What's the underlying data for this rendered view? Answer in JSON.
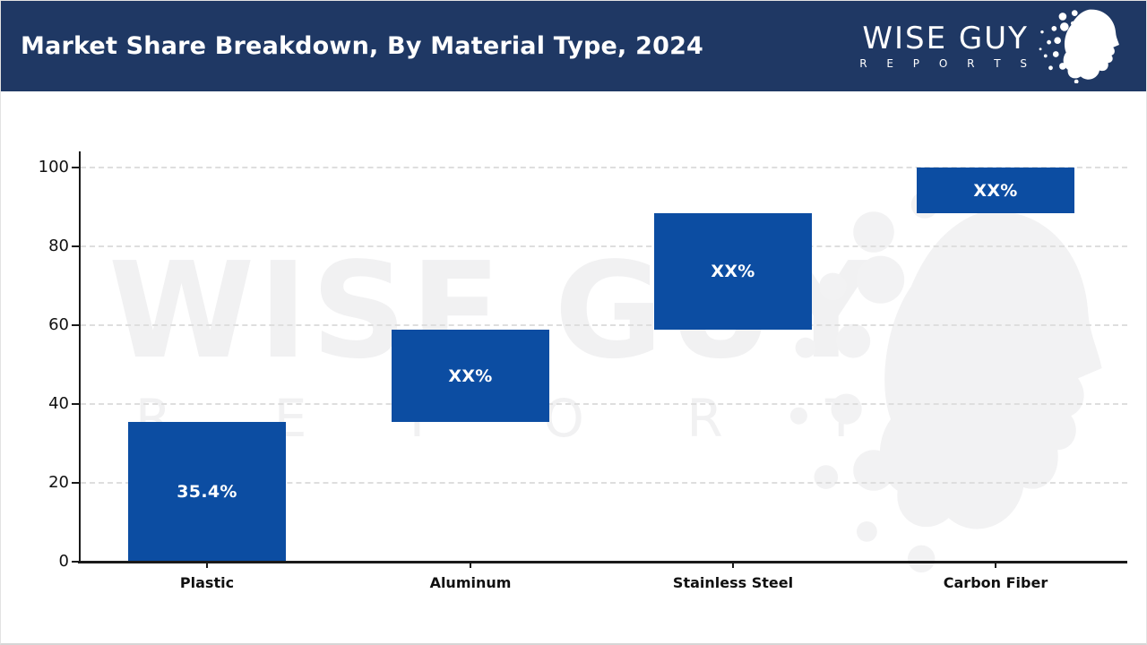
{
  "header": {
    "title": "Market Share Breakdown, By Material Type, 2024",
    "background_color": "#1f3864",
    "logo": {
      "line1": "WISE GUY",
      "line2": "R E P O R T S",
      "face_icon": "dotted-face-profile"
    }
  },
  "watermark": {
    "line1": "WISE GUY",
    "line2": "R E P O R T S",
    "face_icon": "dotted-face-profile"
  },
  "chart_data": {
    "type": "bar",
    "subtype": "waterfall",
    "title": "Market Share Breakdown, By Material Type, 2024",
    "categories": [
      "Plastic",
      "Aluminum",
      "Stainless Steel",
      "Carbon Fiber"
    ],
    "segments": [
      {
        "category": "Plastic",
        "start": 0,
        "end": 35.4,
        "label": "35.4%"
      },
      {
        "category": "Aluminum",
        "start": 35.4,
        "end": 58.9,
        "label": "XX%"
      },
      {
        "category": "Stainless Steel",
        "start": 58.9,
        "end": 88.3,
        "label": "XX%"
      },
      {
        "category": "Carbon Fiber",
        "start": 88.3,
        "end": 100,
        "label": "XX%"
      }
    ],
    "ylim": [
      0,
      100
    ],
    "yticks": [
      0,
      20,
      40,
      60,
      80,
      100
    ],
    "xlabel": "",
    "ylabel": "",
    "grid": "horizontal-dashed",
    "legend": "none",
    "bar_color": "#0c4da2",
    "bar_label_color": "#ffffff",
    "axis_color": "#1a1a1a",
    "gridline_color": "#dedede"
  }
}
